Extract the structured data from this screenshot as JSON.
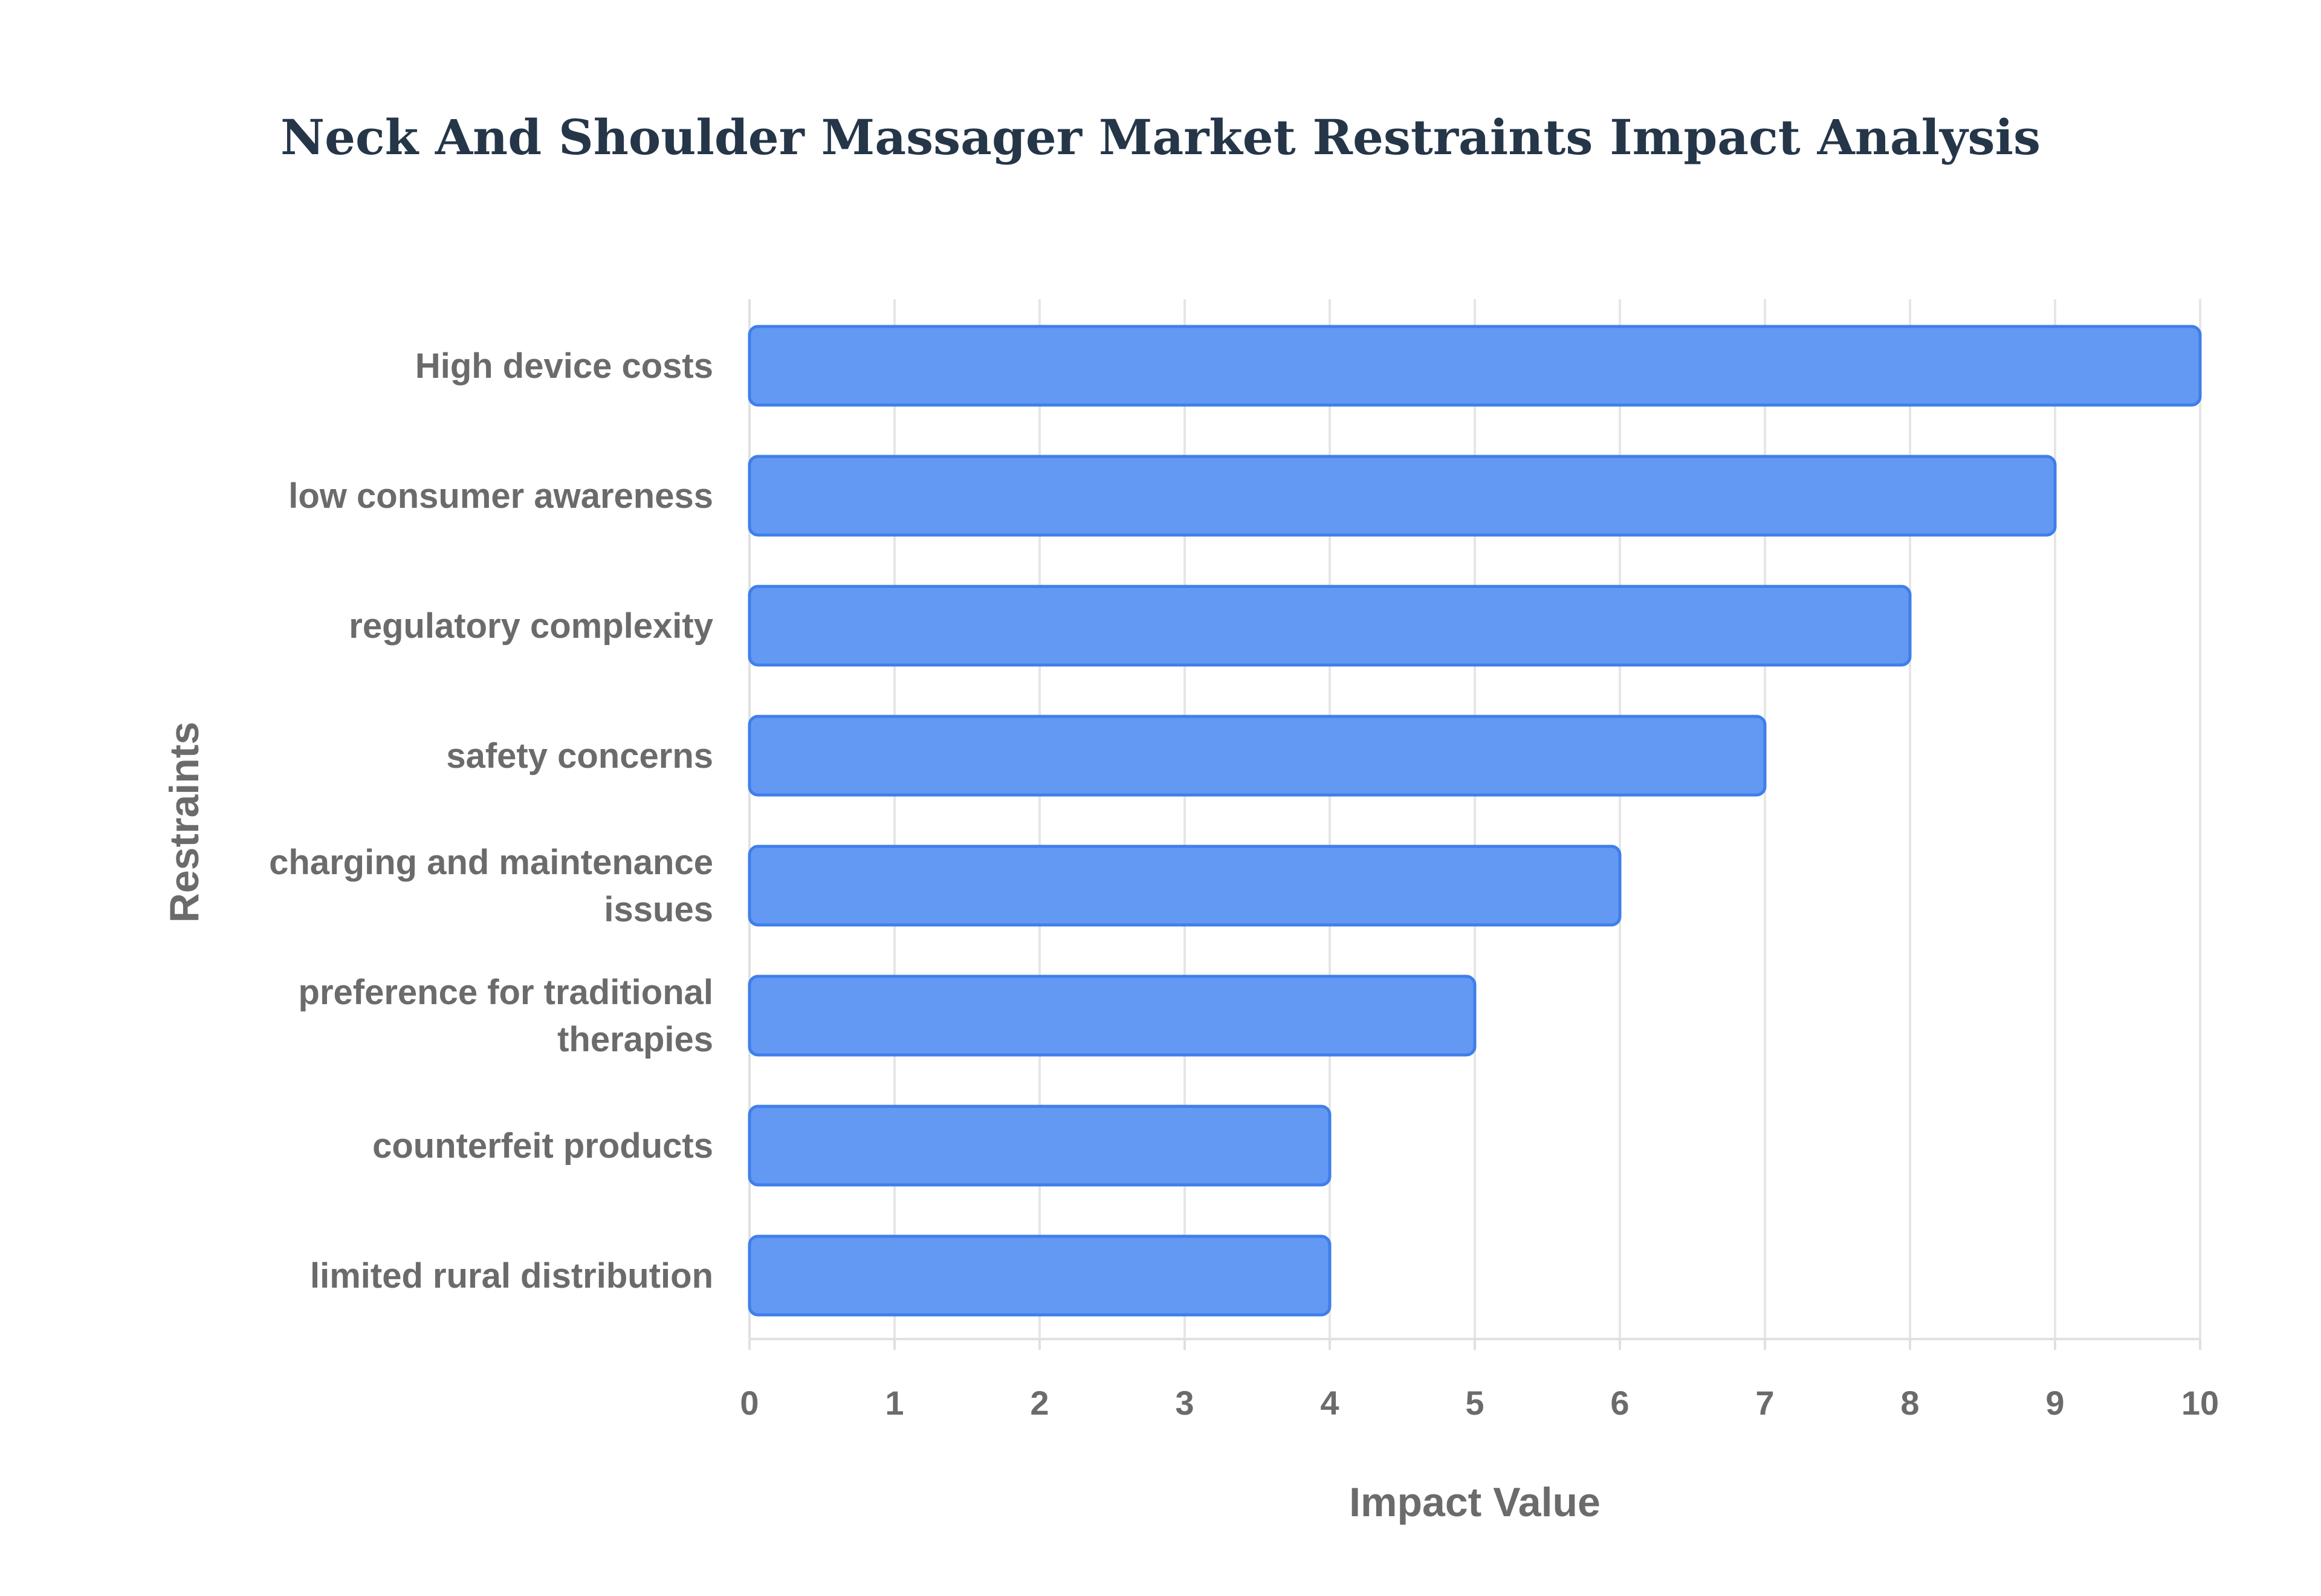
{
  "chart_data": {
    "type": "bar",
    "orientation": "horizontal",
    "title": "Neck And Shoulder Massager Market Restraints Impact Analysis",
    "xlabel": "Impact Value",
    "ylabel": "Restraints",
    "xlim": [
      0,
      10
    ],
    "xticks": [
      "0",
      "1",
      "2",
      "3",
      "4",
      "5",
      "6",
      "7",
      "8",
      "9",
      "10"
    ],
    "grid": true,
    "bar_color": "#6399f3",
    "bar_border_color": "#3f7fea",
    "categories": [
      [
        "High device costs"
      ],
      [
        "low consumer awareness"
      ],
      [
        "regulatory complexity"
      ],
      [
        "safety concerns"
      ],
      [
        "charging and maintenance",
        "issues"
      ],
      [
        "preference for traditional",
        "therapies"
      ],
      [
        "counterfeit products"
      ],
      [
        "limited rural distribution"
      ]
    ],
    "values": [
      10,
      9,
      8,
      7,
      6,
      5,
      4,
      4
    ]
  }
}
